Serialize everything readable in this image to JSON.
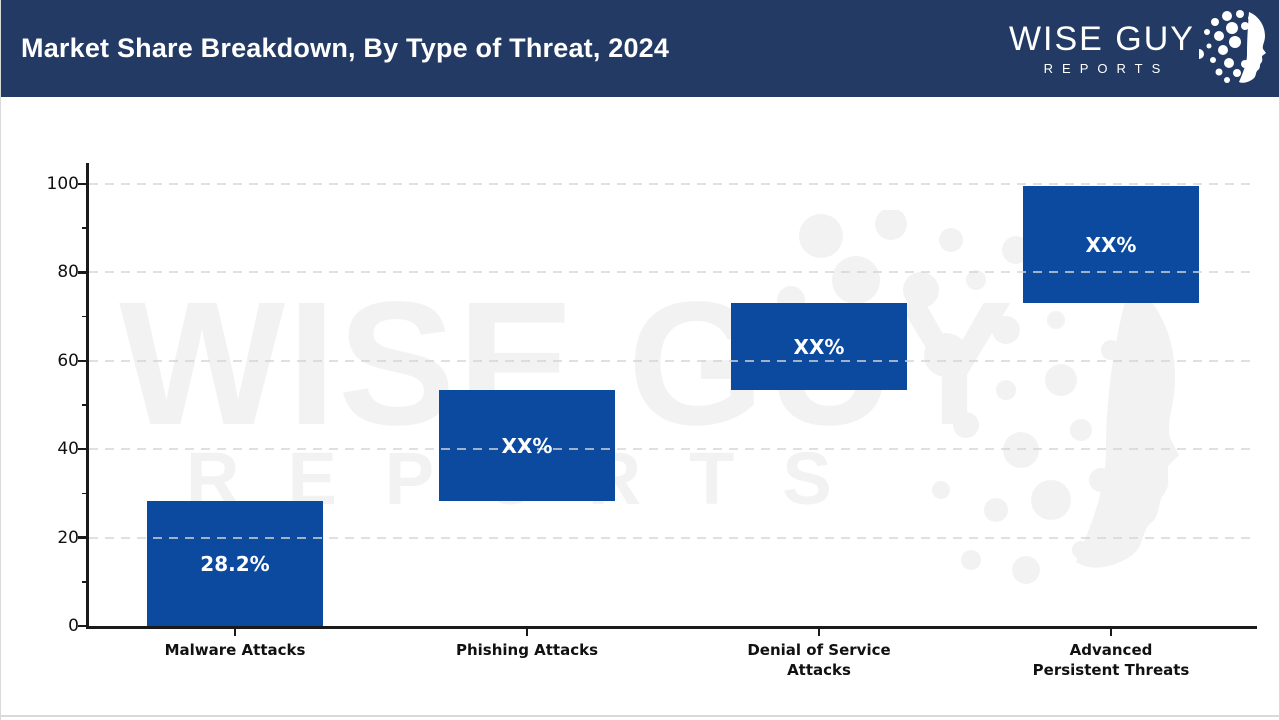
{
  "header": {
    "title": "Market Share Breakdown, By Type of Threat, 2024",
    "bg_color": "#223a64",
    "logo": {
      "wordmark": "WISE GUY",
      "subtitle": "REPORTS"
    }
  },
  "watermark": {
    "line1": "WISE GUY",
    "line2": "REPORTS"
  },
  "chart_data": {
    "type": "bar",
    "subtype": "waterfall",
    "title": "Market Share Breakdown, By Type of Threat, 2024",
    "categories": [
      "Malware Attacks",
      "Phishing Attacks",
      "Denial of Service Attacks",
      "Advanced Persistent Threats"
    ],
    "segments": [
      {
        "category": "Malware Attacks",
        "start": 0,
        "end": 28.2,
        "value": 28.2,
        "label": "28.2%",
        "tick_label_lines": [
          "Malware Attacks"
        ]
      },
      {
        "category": "Phishing Attacks",
        "start": 28.2,
        "end": 53.4,
        "value": 25.2,
        "label": "XX%",
        "tick_label_lines": [
          "Phishing Attacks"
        ]
      },
      {
        "category": "Denial of Service Attacks",
        "start": 53.4,
        "end": 73.0,
        "value": 19.6,
        "label": "XX%",
        "tick_label_lines": [
          "Denial of Service",
          "Attacks"
        ]
      },
      {
        "category": "Advanced Persistent Threats",
        "start": 73.0,
        "end": 99.5,
        "value": 26.5,
        "label": "XX%",
        "tick_label_lines": [
          "Advanced",
          "Persistent Threats"
        ]
      }
    ],
    "xlabel": "",
    "ylabel": "",
    "ylim": [
      0,
      100
    ],
    "yticks": [
      0,
      20,
      40,
      60,
      80,
      100
    ],
    "minor_yticks": [
      10,
      30,
      50,
      70,
      90
    ],
    "grid": "dashed horizontal",
    "grid_color": "#d9d9d9",
    "bar_color": "#0b4a9f",
    "bar_label_color": "#ffffff",
    "legend": "none"
  }
}
